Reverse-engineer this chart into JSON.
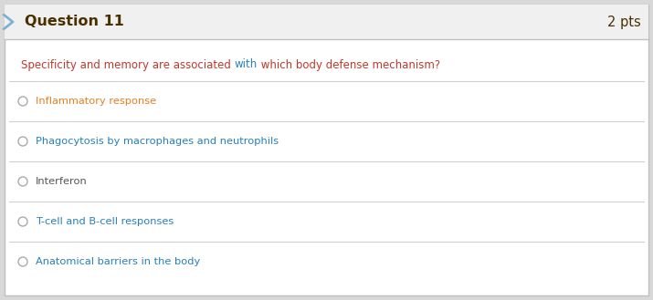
{
  "question_label": "Question 11",
  "pts_label": "2 pts",
  "question_text_parts": [
    {
      "text": "Specificity and memory are associated ",
      "color": "#c0392b"
    },
    {
      "text": "with",
      "color": "#2980b9"
    },
    {
      "text": " which body defense mechanism?",
      "color": "#c0392b"
    }
  ],
  "options": [
    {
      "text": "Inflammatory response",
      "color": "#e67e22"
    },
    {
      "text": "Phagocytosis by macrophages and neutrophils",
      "color": "#2980b9"
    },
    {
      "text": "Interferon",
      "color": "#555555"
    },
    {
      "text": "T-cell and B-cell responses",
      "color": "#2980b9"
    },
    {
      "text": "Anatomical barriers in the body",
      "color": "#2980b9"
    }
  ],
  "header_bg": "#f0f0f0",
  "body_bg": "#ffffff",
  "outer_bg": "#d8d8d8",
  "border_color": "#c0c0c0",
  "divider_color": "#d0d0d0",
  "header_text_color": "#4a3000",
  "pts_text_color": "#4a3000",
  "circle_color": "#aaaaaa",
  "left_arrow_color": "#7ab0d0",
  "font_family": "DejaVu Sans"
}
